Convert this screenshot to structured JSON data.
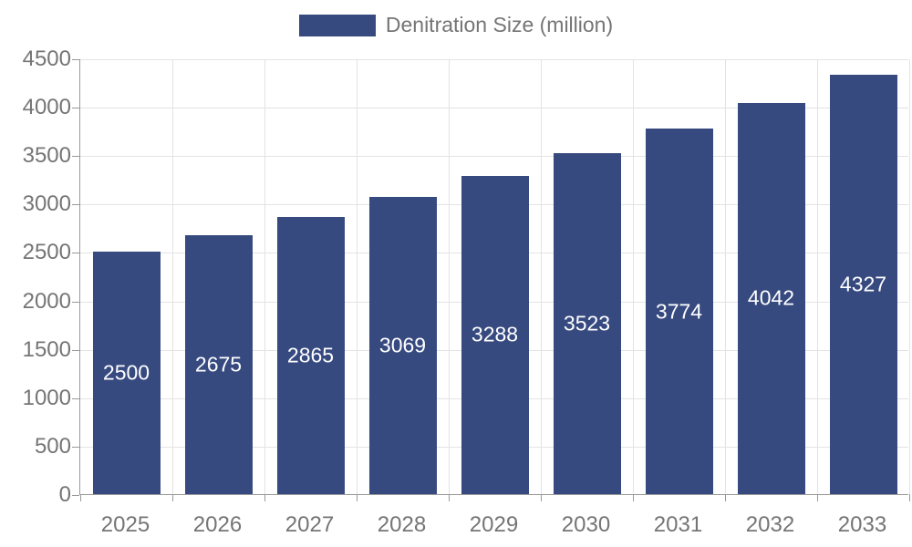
{
  "chart_data": {
    "type": "bar",
    "title": "Denitration Size (million)",
    "categories": [
      "2025",
      "2026",
      "2027",
      "2028",
      "2029",
      "2030",
      "2031",
      "2032",
      "2033"
    ],
    "series": [
      {
        "name": "Denitration Size (million)",
        "values": [
          2500,
          2675,
          2865,
          3069,
          3288,
          3523,
          3774,
          4042,
          4327
        ]
      }
    ],
    "xlabel": "",
    "ylabel": "",
    "ylim": [
      0,
      4500
    ],
    "ytick_step": 500,
    "grid": true,
    "legend_position": "top-center",
    "value_label_position": "inside-center"
  },
  "colors": {
    "bar": "#374A80",
    "bar_label": "#FFFFFF",
    "axis_line": "#999999",
    "grid_line": "#E3E3E3",
    "tick_text": "#757575",
    "legend_text": "#757575",
    "background": "#FFFFFF"
  }
}
